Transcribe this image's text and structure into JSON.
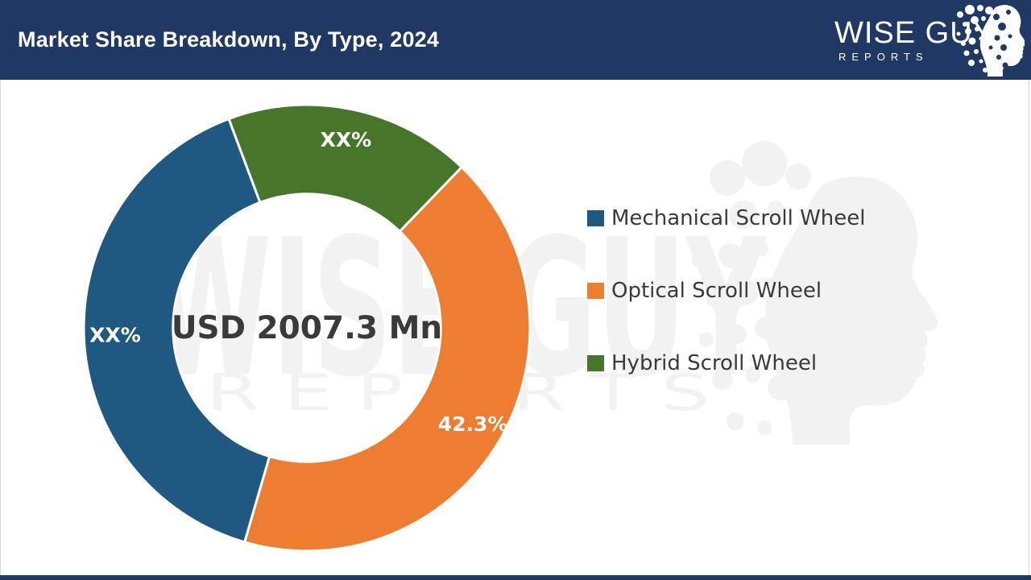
{
  "header": {
    "title": "Market Share Breakdown, By Type, 2024",
    "logo": {
      "line1": "WISE GUY",
      "line2": "R E P O R T S"
    }
  },
  "chart_data": {
    "type": "pie",
    "subtype": "donut",
    "title": "Market Share Breakdown, By Type, 2024",
    "center_label": "USD 2007.3 Mn",
    "start_angle_deg": -20.5,
    "inner_radius_ratio": 0.6,
    "label_radius_ratio": 0.86,
    "legend_position": "right",
    "segments": [
      {
        "label": "Hybrid Scroll Wheel",
        "value_pct": 17.9,
        "display": "XX%",
        "color": "#47762A"
      },
      {
        "label": "Optical Scroll Wheel",
        "value_pct": 42.3,
        "display": "42.3%",
        "color": "#EE7D31"
      },
      {
        "label": "Mechanical Scroll Wheel",
        "value_pct": 39.8,
        "display": "XX%",
        "color": "#1F5880"
      }
    ],
    "legend": [
      {
        "label": "Mechanical Scroll Wheel",
        "color": "#1F5880"
      },
      {
        "label": "Optical Scroll Wheel",
        "color": "#EE7D31"
      },
      {
        "label": "Hybrid Scroll Wheel",
        "color": "#47762A"
      }
    ]
  },
  "watermark": {
    "line1": "WISE GUY",
    "line2": "R E P O R T S"
  },
  "colors": {
    "header_bg": "#203864",
    "text_dark": "#3a3a3a",
    "watermark": "#f2f2f2",
    "slice_gap": "#ffffff"
  }
}
